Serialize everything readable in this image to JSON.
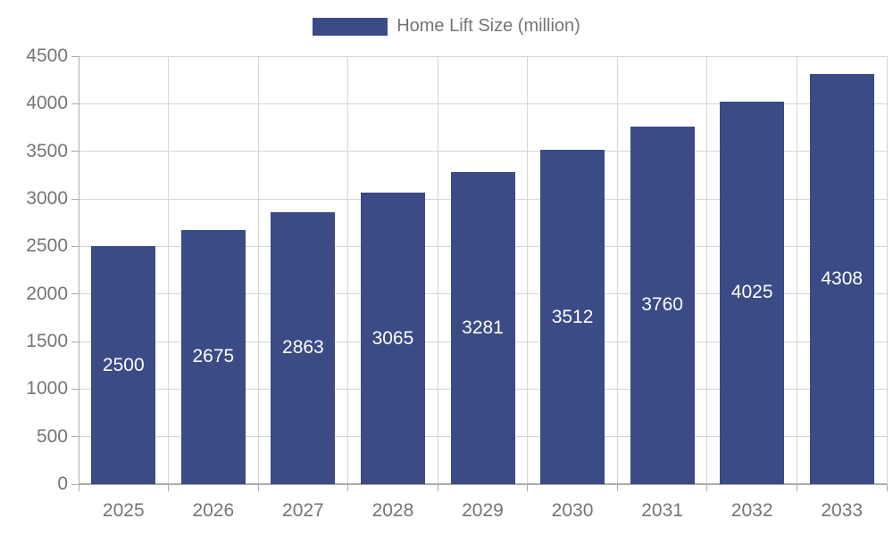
{
  "legend": {
    "label": "Home Lift Size (million)"
  },
  "chart_data": {
    "type": "bar",
    "title": "",
    "categories": [
      "2025",
      "2026",
      "2027",
      "2028",
      "2029",
      "2030",
      "2031",
      "2032",
      "2033"
    ],
    "series": [
      {
        "name": "Home Lift Size (million)",
        "values": [
          2500,
          2675,
          2863,
          3065,
          3281,
          3512,
          3760,
          4025,
          4308
        ]
      }
    ],
    "value_labels": [
      2500,
      2675,
      2863,
      3065,
      3281,
      3512,
      3760,
      4025,
      4308
    ],
    "xlabel": "",
    "ylabel": "",
    "ylim": [
      0,
      4500
    ],
    "ytick_step": 500,
    "yticks": [
      0,
      500,
      1000,
      1500,
      2000,
      2500,
      3000,
      3500,
      4000,
      4500
    ],
    "grid": true,
    "legend_position": "top-center",
    "colors": {
      "bar": "#3A4B86",
      "bar_value_text": "#ffffff",
      "axis_text": "#757575",
      "grid_line": "#d6d6d6",
      "axis_line": "#ababab",
      "background": "#ffffff"
    }
  }
}
